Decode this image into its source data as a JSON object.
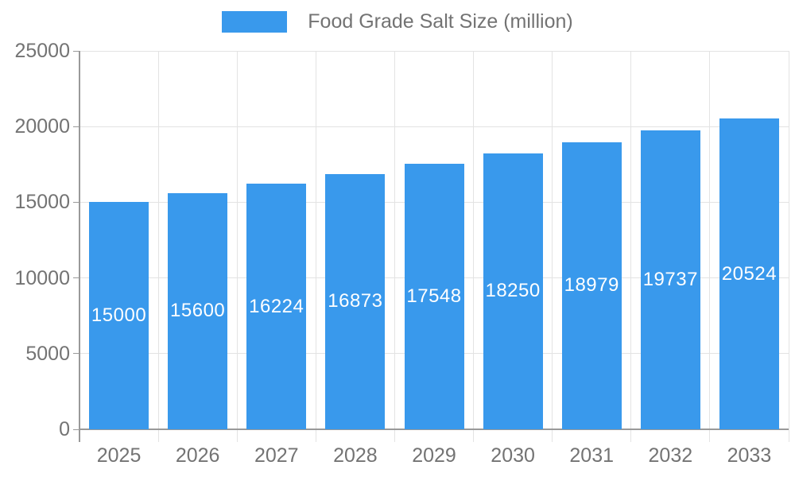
{
  "legend": {
    "label": "Food Grade Salt Size (million)"
  },
  "chart_data": {
    "type": "bar",
    "title": "",
    "xlabel": "",
    "ylabel": "",
    "categories": [
      "2025",
      "2026",
      "2027",
      "2028",
      "2029",
      "2030",
      "2031",
      "2032",
      "2033"
    ],
    "series": [
      {
        "name": "Food Grade Salt Size (million)",
        "values": [
          15000,
          15600,
          16224,
          16873,
          17548,
          18250,
          18979,
          19737,
          20524
        ]
      }
    ],
    "bar_labels": [
      "15000",
      "15600",
      "16224",
      "16873",
      "17548",
      "18250",
      "18979",
      "19737",
      "20524"
    ],
    "ylim": [
      0,
      25000
    ],
    "yticks": [
      0,
      5000,
      10000,
      15000,
      20000,
      25000
    ],
    "grid": true,
    "legend_position": "top",
    "colors": {
      "bar": "#3999ec",
      "grid": "#e3e3e3",
      "axis": "#999999",
      "tick_text": "#737373",
      "bar_label_text": "#ffffff",
      "background": "#ffffff"
    }
  }
}
